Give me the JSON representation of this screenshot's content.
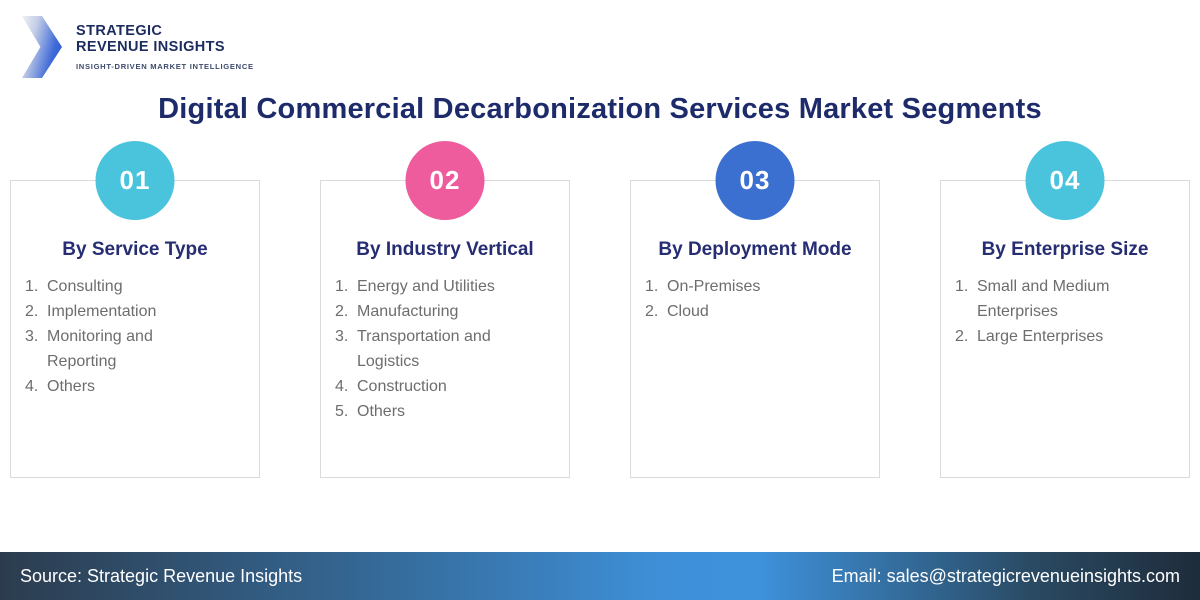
{
  "logo": {
    "brand_line1": "STRATEGIC",
    "brand_line2": "REVENUE INSIGHTS",
    "tagline": "INSIGHT-DRIVEN MARKET INTELLIGENCE"
  },
  "page": {
    "title": "Digital Commercial Decarbonization Services Market Segments"
  },
  "segments": [
    {
      "number": "01",
      "badge_color": "#4ac3dd",
      "title": "By Service Type",
      "items": [
        "Consulting",
        "Implementation",
        "Monitoring and Reporting",
        "Others"
      ]
    },
    {
      "number": "02",
      "badge_color": "#ef5c9e",
      "title": "By Industry Vertical",
      "items": [
        "Energy and Utilities",
        "Manufacturing",
        "Transportation and Logistics",
        "Construction",
        "Others"
      ]
    },
    {
      "number": "03",
      "badge_color": "#3b6fd0",
      "title": "By Deployment Mode",
      "items": [
        "On-Premises",
        "Cloud"
      ]
    },
    {
      "number": "04",
      "badge_color": "#4ac3dd",
      "title": "By Enterprise Size",
      "items": [
        "Small and Medium Enterprises",
        "Large Enterprises"
      ]
    }
  ],
  "footer": {
    "source": "Source: Strategic Revenue Insights",
    "email": "Email: sales@strategicrevenueinsights.com"
  }
}
